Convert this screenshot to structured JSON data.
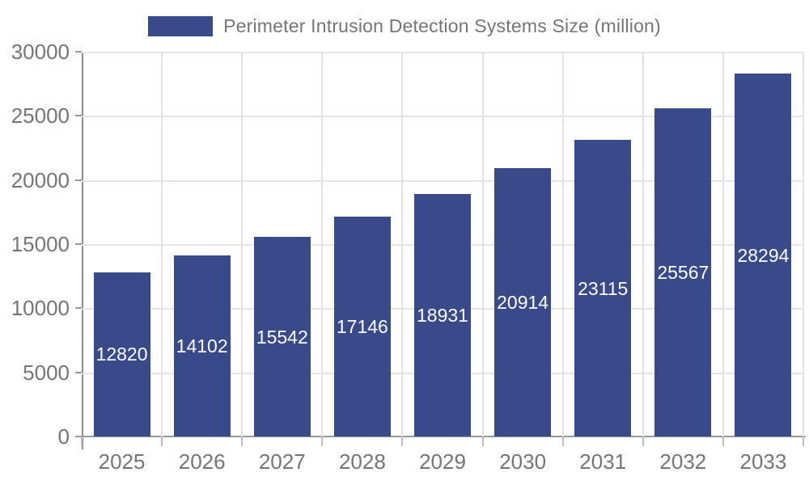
{
  "chart_data": {
    "type": "bar",
    "title": "Perimeter Intrusion Detection Systems Size (million)",
    "categories": [
      "2025",
      "2026",
      "2027",
      "2028",
      "2029",
      "2030",
      "2031",
      "2032",
      "2033"
    ],
    "values": [
      12820,
      14102,
      15542,
      17146,
      18931,
      20914,
      23115,
      25567,
      28294
    ],
    "xlabel": "",
    "ylabel": "",
    "ylim": [
      0,
      30000
    ],
    "yticks": [
      0,
      5000,
      10000,
      15000,
      20000,
      25000,
      30000
    ],
    "grid": true,
    "legend_position": "top-center",
    "value_labels": "white, centered inside bars",
    "colors": {
      "bar": "#394a8b",
      "value_label": "#ffffff",
      "axis_text": "#757575",
      "axis_line": "#8c8c8c",
      "baseline": "#999999",
      "gridline": "#e4e4e4",
      "background": "#ffffff"
    }
  }
}
